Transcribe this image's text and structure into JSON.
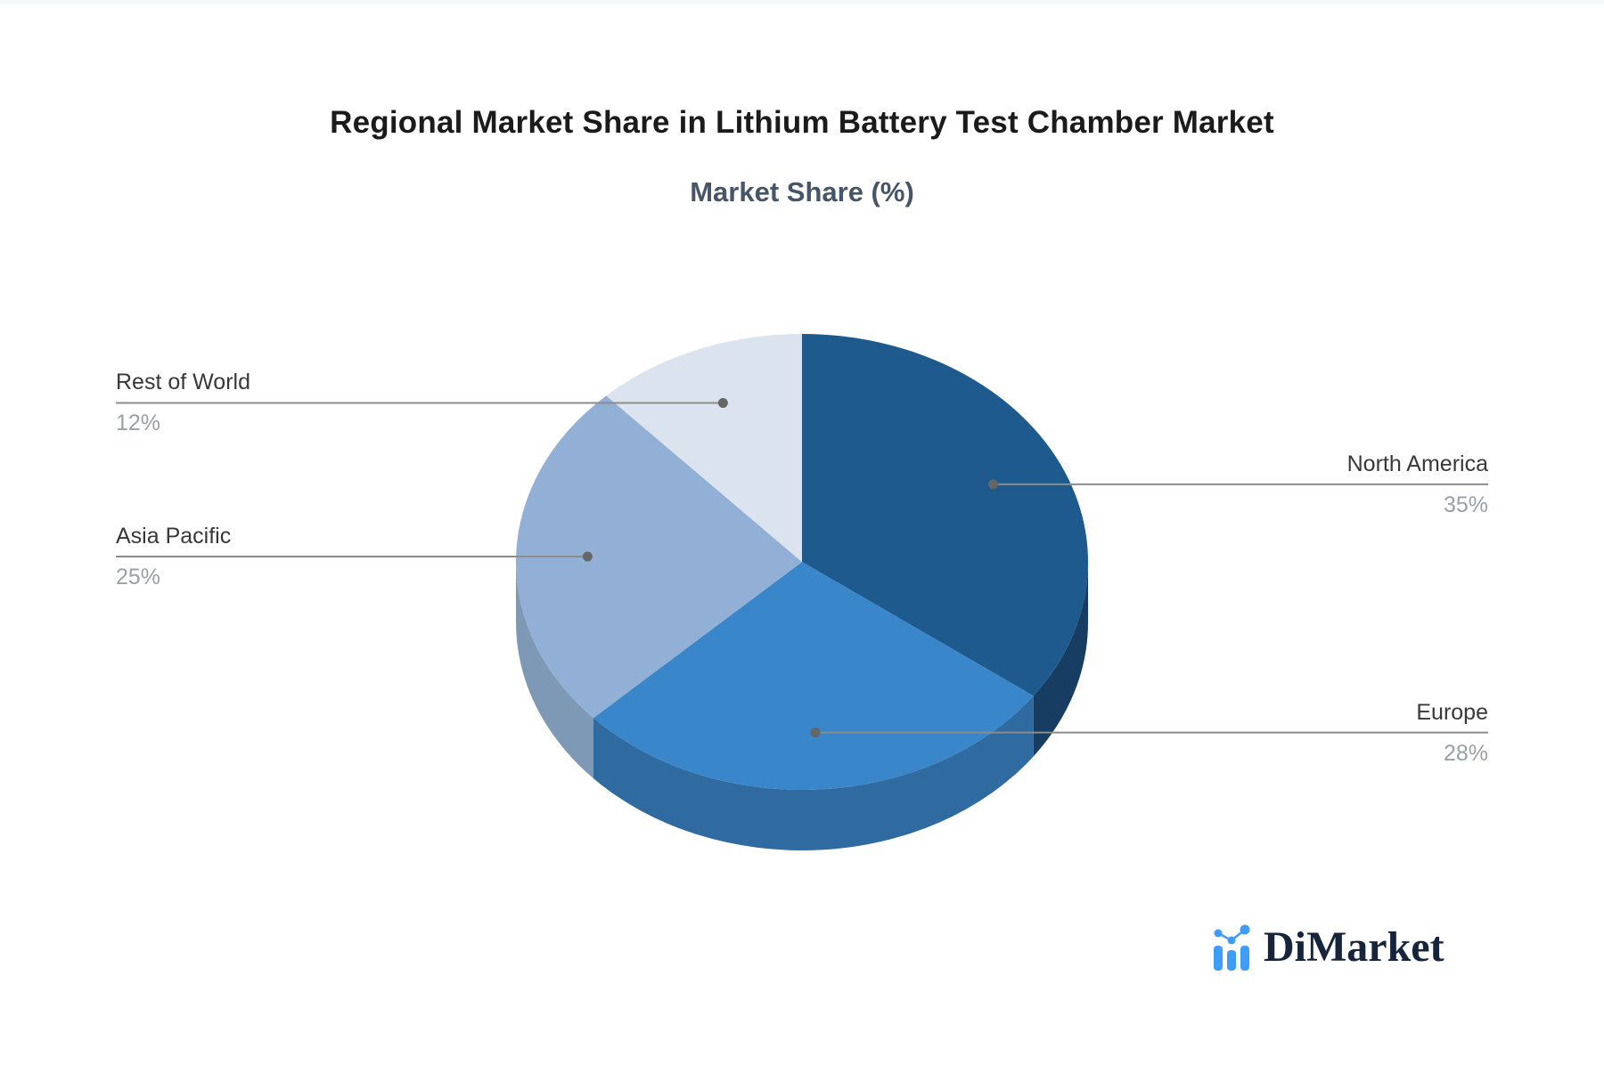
{
  "header": {
    "title": "Regional Market Share in Lithium Battery Test Chamber Market",
    "subtitle": "Market Share (%)"
  },
  "chart_data": {
    "type": "pie",
    "style": "3d",
    "title": "Regional Market Share in Lithium Battery Test Chamber Market",
    "subtitle": "Market Share (%)",
    "unit": "%",
    "start_angle_deg": 90,
    "direction": "clockwise",
    "legend": "none",
    "categories": [
      "North America",
      "Europe",
      "Asia Pacific",
      "Rest of World"
    ],
    "values": [
      35,
      28,
      25,
      12
    ],
    "slices": [
      {
        "label": "North America",
        "value": 35,
        "pct_label": "35%",
        "color": "#1E5A8E",
        "side_color": "#173D63",
        "label_side": "right"
      },
      {
        "label": "Europe",
        "value": 28,
        "pct_label": "28%",
        "color": "#3A86CA",
        "side_color": "#2F6BA0",
        "label_side": "right"
      },
      {
        "label": "Asia Pacific",
        "value": 25,
        "pct_label": "25%",
        "color": "#92B0D5",
        "side_color": "#7E99B6",
        "label_side": "left"
      },
      {
        "label": "Rest of World",
        "value": 12,
        "pct_label": "12%",
        "color": "#DBE3EE",
        "side_color": "#C3CEDD",
        "label_side": "left"
      }
    ],
    "leader_line_color": "#8c8c8c",
    "leader_dot_color": "#666666",
    "label_color": "#383838",
    "pct_color": "#9aa0a6"
  },
  "branding": {
    "logo_text": "DiMarket",
    "logo_icon": "bar-chart-icon",
    "logo_accent_color": "#3E9EF5",
    "logo_text_color": "#16243C"
  }
}
